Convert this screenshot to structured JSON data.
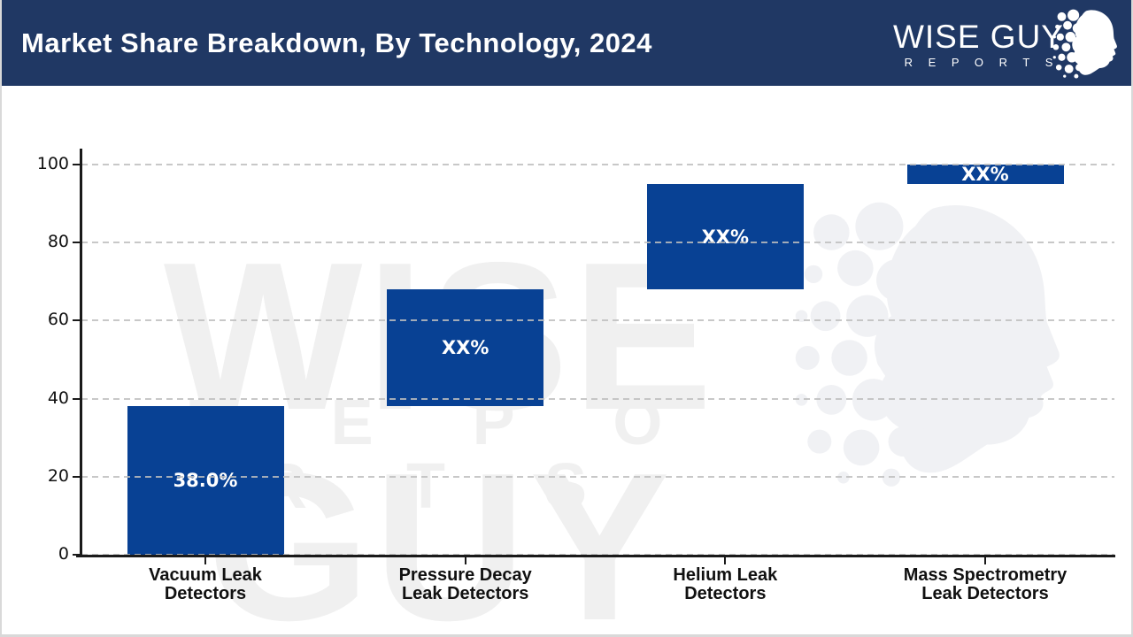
{
  "header": {
    "bg_color": "#203864",
    "title": "Market Share Breakdown, By Technology, 2024",
    "logo": {
      "primary": "WISE GUY",
      "secondary": "R E P O R T S"
    }
  },
  "watermark": {
    "primary": "WISE GUY",
    "secondary": "R E P O R T S"
  },
  "chart_data": {
    "type": "bar",
    "variant": "waterfall",
    "title": "Market Share Breakdown, By Technology, 2024",
    "ylim": [
      0,
      100
    ],
    "yticks": [
      0,
      20,
      40,
      60,
      80,
      100
    ],
    "grid": {
      "axis": "y",
      "style": "dashed",
      "color": "#c9c9c9",
      "drawn_above_bars": true
    },
    "bar_color": "#084194",
    "bar_label_color": "#ffffff",
    "categories": [
      "Vacuum Leak Detectors",
      "Pressure Decay Leak Detectors",
      "Helium Leak Detectors",
      "Mass Spectrometry Leak Detectors"
    ],
    "segments": [
      {
        "category_lines": [
          "Vacuum Leak",
          "Detectors"
        ],
        "start": 0,
        "end": 38,
        "data_label": "38.0%"
      },
      {
        "category_lines": [
          "Pressure Decay",
          "Leak Detectors"
        ],
        "start": 38,
        "end": 68,
        "data_label": "XX%"
      },
      {
        "category_lines": [
          "Helium Leak",
          "Detectors"
        ],
        "start": 68,
        "end": 95,
        "data_label": "XX%"
      },
      {
        "category_lines": [
          "Mass Spectrometry",
          "Leak Detectors"
        ],
        "start": 95,
        "end": 100,
        "data_label": "XX%"
      }
    ]
  }
}
